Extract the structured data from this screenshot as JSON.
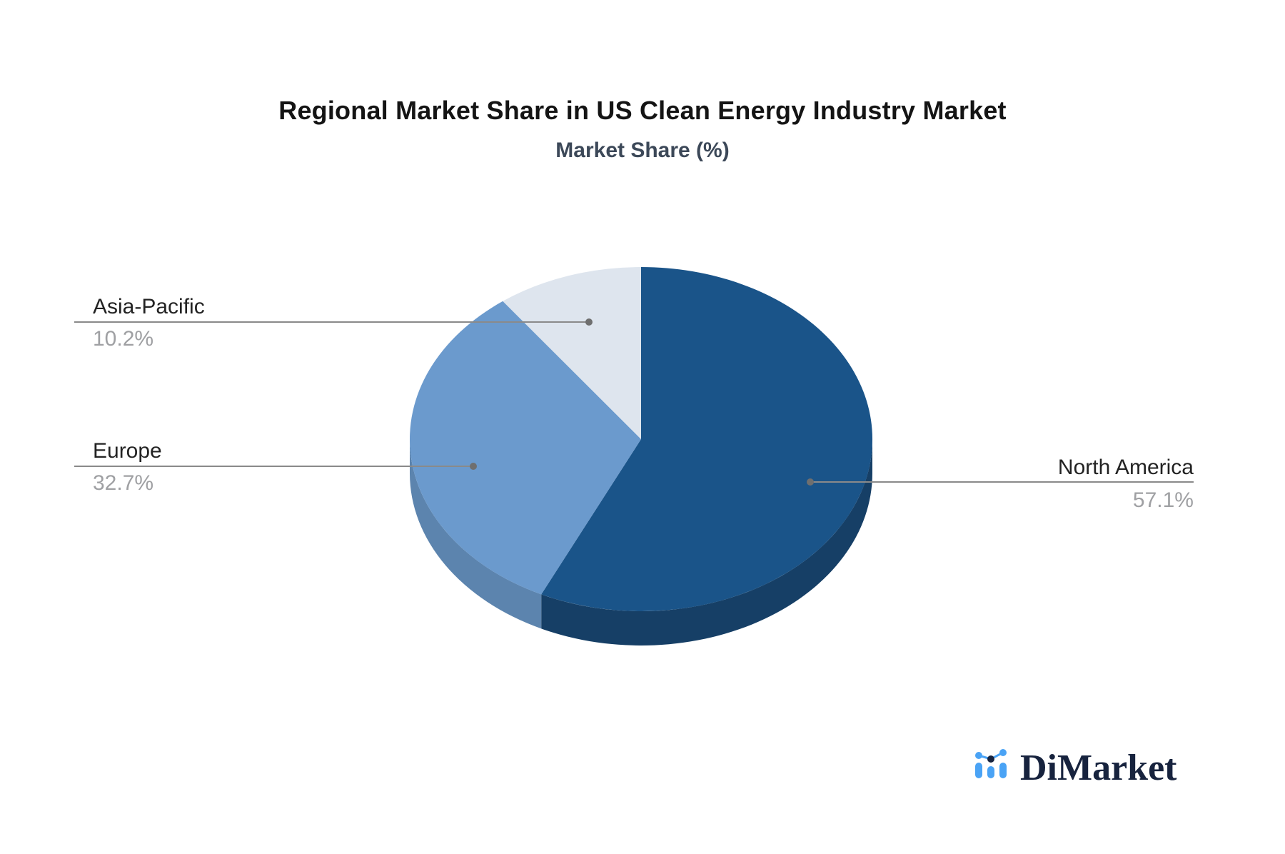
{
  "header": {
    "title": "Regional Market Share in US Clean Energy Industry Market",
    "subtitle": "Market Share (%)"
  },
  "chart_data": {
    "type": "pie",
    "title": "Regional Market Share in US Clean Energy Industry Market",
    "subtitle": "Market Share (%)",
    "unit": "%",
    "effect": "3d",
    "direction": "clockwise",
    "start_angle": "12-o'clock",
    "legend_position": "leader-line labels (name above line, percent below)",
    "slices": [
      {
        "label": "North America",
        "value": 57.1,
        "display": "57.1%",
        "color": "#1A5489",
        "side_color": "#163F66"
      },
      {
        "label": "Europe",
        "value": 32.7,
        "display": "32.7%",
        "color": "#6B9ACD",
        "side_color": "#5C84AE"
      },
      {
        "label": "Asia-Pacific",
        "value": 10.2,
        "display": "10.2%",
        "color": "#DEE5EE",
        "side_color": "#C9D2E0"
      }
    ]
  },
  "branding": {
    "logo_text": "DiMarket",
    "logo_icon": "bar-line-chart-icon",
    "logo_blue": "#4AA3F5",
    "logo_navy": "#17233E"
  },
  "style": {
    "leader_line_color": "#8A8A8A",
    "leader_dot_color": "#6F6F6F",
    "label_name_color": "#232323",
    "label_value_color": "#9FA0A3",
    "subtitle_color": "#3C4858"
  }
}
